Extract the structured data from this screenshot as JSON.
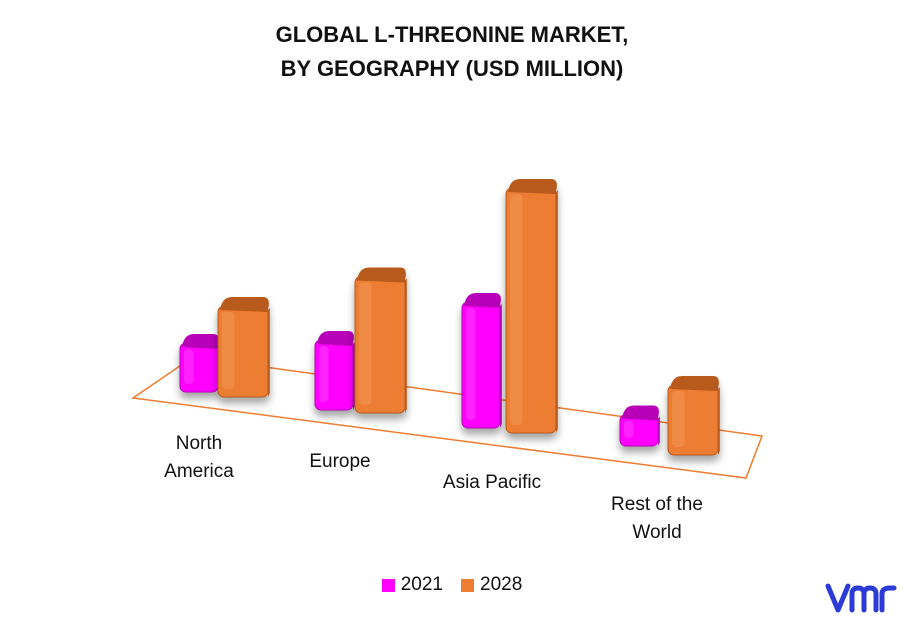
{
  "title_line1": "GLOBAL L-THREONINE MARKET,",
  "title_line2": "BY GEOGRAPHY (USD MILLION)",
  "logo_text": "vmr",
  "colors": {
    "s2021": "#ff00ff",
    "s2028": "#ed7d31",
    "floor": "#ed7d31"
  },
  "chart_data": {
    "type": "bar",
    "categories": [
      "North America",
      "Europe",
      "Asia Pacific",
      "Rest of the World"
    ],
    "category_label_lines": [
      [
        "North",
        "America"
      ],
      [
        "Europe"
      ],
      [
        "Asia Pacific"
      ],
      [
        "Rest of the",
        "World"
      ]
    ],
    "series": [
      {
        "name": "2021",
        "values": [
          28,
          40,
          72,
          18
        ]
      },
      {
        "name": "2028",
        "values": [
          52,
          78,
          140,
          40
        ]
      }
    ],
    "title": "GLOBAL L-THREONINE MARKET, BY GEOGRAPHY (USD MILLION)",
    "legend_position": "bottom",
    "grid": false
  }
}
